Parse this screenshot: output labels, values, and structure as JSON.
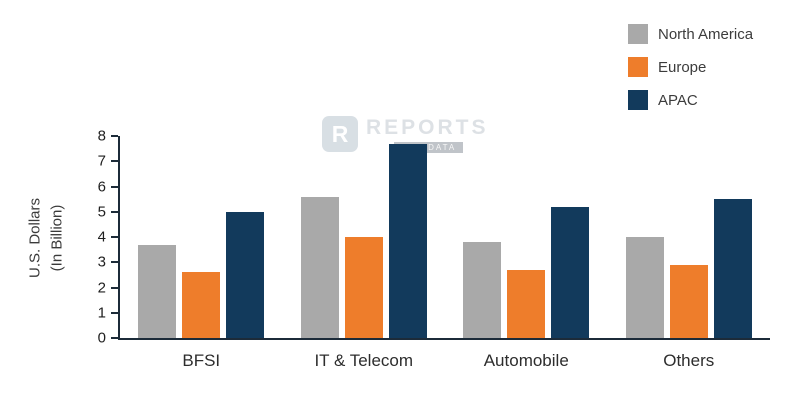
{
  "chart_data": {
    "type": "bar",
    "title": "",
    "categories": [
      "BFSI",
      "IT & Telecom",
      "Automobile",
      "Others"
    ],
    "series": [
      {
        "name": "North America",
        "color": "#a9a9a9",
        "values": [
          3.7,
          5.6,
          3.8,
          4.0
        ]
      },
      {
        "name": "Europe",
        "color": "#ee7d2b",
        "values": [
          2.6,
          4.0,
          2.7,
          2.9
        ]
      },
      {
        "name": "APAC",
        "color": "#123a5c",
        "values": [
          5.0,
          7.7,
          5.2,
          5.5
        ]
      }
    ],
    "xlabel": "",
    "ylabel_line1": "U.S. Dollars",
    "ylabel_line2": "(In Billion)",
    "ylim": [
      0,
      8
    ],
    "yticks": [
      0,
      1,
      2,
      3,
      4,
      5,
      6,
      7,
      8
    ],
    "grid": false,
    "legend_position": "top-right"
  },
  "watermark": {
    "logo_letter": "R",
    "text": "REPORTS",
    "subtext": "AND DATA"
  }
}
